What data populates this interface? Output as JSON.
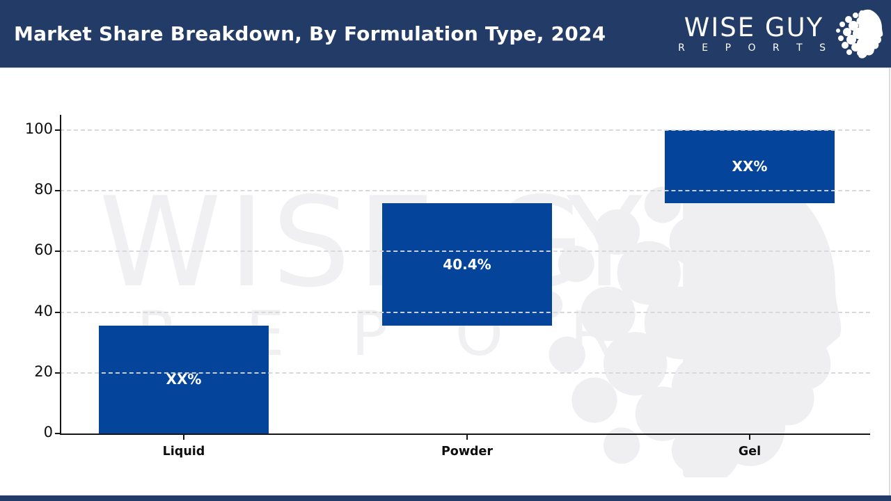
{
  "header": {
    "title": "Market Share Breakdown, By Formulation Type, 2024",
    "brand": {
      "name_line": "WISE GUY",
      "sub_line": "R E P O R T S"
    }
  },
  "watermark": {
    "word_main": "WISE G",
    "word_tail": "Y",
    "reports_line": "R  E  P  O  R  T  S"
  },
  "chart_data": {
    "type": "bar",
    "subtype": "waterfall",
    "title": "Market Share Breakdown, By Formulation Type, 2024",
    "categories": [
      "Liquid",
      "Powder",
      "Gel"
    ],
    "segments": [
      {
        "category": "Liquid",
        "start": 0,
        "end": 35.6,
        "label": "XX%"
      },
      {
        "category": "Powder",
        "start": 35.6,
        "end": 76.0,
        "label": "40.4%"
      },
      {
        "category": "Gel",
        "start": 76.0,
        "end": 100,
        "label": "XX%"
      }
    ],
    "bar_labels": [
      "XX%",
      "40.4%",
      "XX%"
    ],
    "yticks": [
      0,
      20,
      40,
      60,
      80,
      100
    ],
    "ylim": [
      0,
      105
    ],
    "xlabel": "",
    "ylabel": "",
    "grid": "horizontal dashed, drawn over bars",
    "legend": "none",
    "bar_color": "#05449B"
  },
  "colors": {
    "header_bg": "#223B67",
    "footer_bg": "#223B67",
    "bar": "#05449B",
    "grid": "#D6D6D6",
    "axis": "#151515",
    "watermark": "#F0F0F3"
  }
}
